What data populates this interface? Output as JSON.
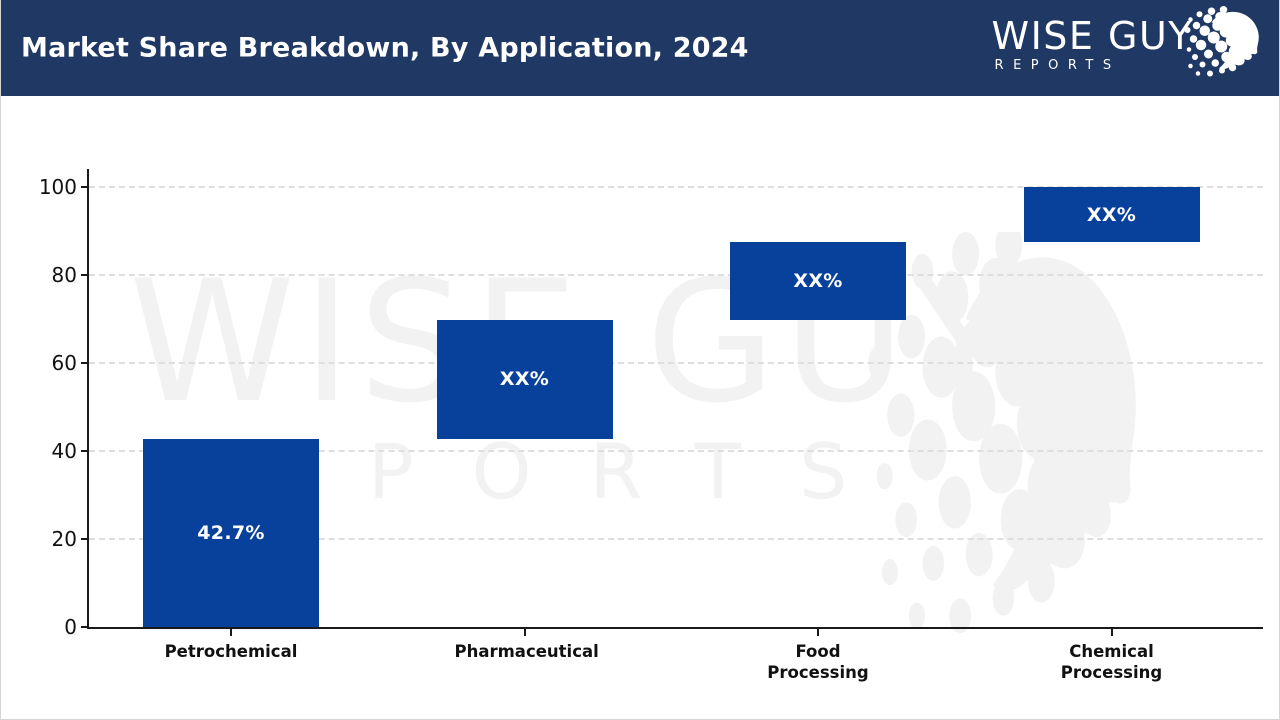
{
  "header": {
    "title": "Market Share Breakdown, By Application, 2024",
    "logo": {
      "line1": "WISE GUY",
      "line2": "REPORTS"
    }
  },
  "watermark": {
    "line1": "WISE GUY",
    "line2": "REPORTS"
  },
  "chart_data": {
    "type": "bar",
    "subtype": "waterfall",
    "title": "Market Share Breakdown, By Application, 2024",
    "categories": [
      "Petrochemical",
      "Pharmaceutical",
      "Food Processing",
      "Chemical Processing"
    ],
    "segments": [
      {
        "category": "Petrochemical",
        "start": 0,
        "end": 42.7,
        "label": "42.7%"
      },
      {
        "category": "Pharmaceutical",
        "start": 42.7,
        "end": 69.8,
        "label": "XX%"
      },
      {
        "category": "Food Processing",
        "start": 69.8,
        "end": 87.5,
        "label": "XX%"
      },
      {
        "category": "Chemical Processing",
        "start": 87.5,
        "end": 100,
        "label": "XX%"
      }
    ],
    "yticks": [
      0,
      20,
      40,
      60,
      80,
      100
    ],
    "ylim": [
      0,
      104
    ],
    "xlabel": "",
    "ylabel": "",
    "legend": "none",
    "grid": "horizontal-dashed",
    "colors": {
      "bar": "#08419c",
      "header_bg": "#1f3864",
      "grid_line": "#dedede",
      "axis": "#1a1a1a",
      "bar_label": "#ffffff",
      "watermark": "#f2f2f2"
    }
  }
}
